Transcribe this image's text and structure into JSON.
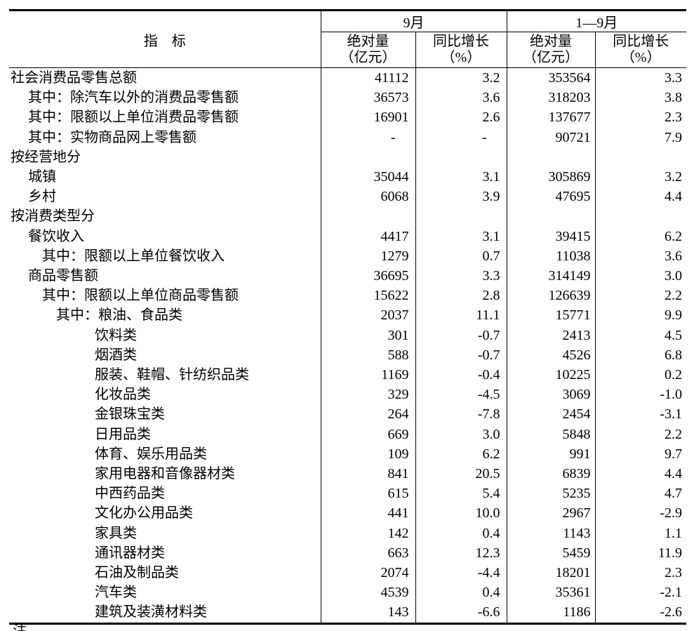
{
  "note": "注",
  "table": {
    "indicator_header": "指　标",
    "col_groups": [
      {
        "label": "9月"
      },
      {
        "label": "1—9月"
      }
    ],
    "sub_headers": {
      "abs_line1": "绝对量",
      "abs_line2": "（亿元）",
      "growth_line1": "同比增长",
      "growth_line2": "（%）"
    }
  },
  "rows": [
    {
      "label": "社会消费品零售总额",
      "indent": 0,
      "values": [
        "41112",
        "3.2",
        "353564",
        "3.3"
      ]
    },
    {
      "label": "其中：除汽车以外的消费品零售额",
      "indent": 1,
      "values": [
        "36573",
        "3.6",
        "318203",
        "3.8"
      ]
    },
    {
      "label": "其中：限额以上单位消费品零售额",
      "indent": 1,
      "values": [
        "16901",
        "2.6",
        "137677",
        "2.3"
      ]
    },
    {
      "label": "其中：实物商品网上零售额",
      "indent": 1,
      "values": [
        "-",
        "-",
        "90721",
        "7.9"
      ]
    },
    {
      "label": "按经营地分",
      "indent": 0,
      "values": [
        "",
        "",
        "",
        ""
      ]
    },
    {
      "label": "城镇",
      "indent": 1,
      "values": [
        "35044",
        "3.1",
        "305869",
        "3.2"
      ]
    },
    {
      "label": "乡村",
      "indent": 1,
      "values": [
        "6068",
        "3.9",
        "47695",
        "4.4"
      ]
    },
    {
      "label": "按消费类型分",
      "indent": 0,
      "values": [
        "",
        "",
        "",
        ""
      ]
    },
    {
      "label": "餐饮收入",
      "indent": 1,
      "values": [
        "4417",
        "3.1",
        "39415",
        "6.2"
      ]
    },
    {
      "label": "其中：限额以上单位餐饮收入",
      "indent": 2,
      "values": [
        "1279",
        "0.7",
        "11038",
        "3.6"
      ]
    },
    {
      "label": "商品零售额",
      "indent": 1,
      "values": [
        "36695",
        "3.3",
        "314149",
        "3.0"
      ]
    },
    {
      "label": "其中：限额以上单位商品零售额",
      "indent": 2,
      "values": [
        "15622",
        "2.8",
        "126639",
        "2.2"
      ]
    },
    {
      "label": "其中：粮油、食品类",
      "indent": 3,
      "values": [
        "2037",
        "11.1",
        "15771",
        "9.9"
      ]
    },
    {
      "label": "饮料类",
      "indent": 4,
      "values": [
        "301",
        "-0.7",
        "2413",
        "4.5"
      ]
    },
    {
      "label": "烟酒类",
      "indent": 4,
      "values": [
        "588",
        "-0.7",
        "4526",
        "6.8"
      ]
    },
    {
      "label": "服装、鞋帽、针纺织品类",
      "indent": 4,
      "values": [
        "1169",
        "-0.4",
        "10225",
        "0.2"
      ]
    },
    {
      "label": "化妆品类",
      "indent": 4,
      "values": [
        "329",
        "-4.5",
        "3069",
        "-1.0"
      ]
    },
    {
      "label": "金银珠宝类",
      "indent": 4,
      "values": [
        "264",
        "-7.8",
        "2454",
        "-3.1"
      ]
    },
    {
      "label": "日用品类",
      "indent": 4,
      "values": [
        "669",
        "3.0",
        "5848",
        "2.2"
      ]
    },
    {
      "label": "体育、娱乐用品类",
      "indent": 4,
      "values": [
        "109",
        "6.2",
        "991",
        "9.7"
      ]
    },
    {
      "label": "家用电器和音像器材类",
      "indent": 4,
      "values": [
        "841",
        "20.5",
        "6839",
        "4.4"
      ]
    },
    {
      "label": "中西药品类",
      "indent": 4,
      "values": [
        "615",
        "5.4",
        "5235",
        "4.7"
      ]
    },
    {
      "label": "文化办公用品类",
      "indent": 4,
      "values": [
        "441",
        "10.0",
        "2967",
        "-2.9"
      ]
    },
    {
      "label": "家具类",
      "indent": 4,
      "values": [
        "142",
        "0.4",
        "1143",
        "1.1"
      ]
    },
    {
      "label": "通讯器材类",
      "indent": 4,
      "values": [
        "663",
        "12.3",
        "5459",
        "11.9"
      ]
    },
    {
      "label": "石油及制品类",
      "indent": 4,
      "values": [
        "2074",
        "-4.4",
        "18201",
        "2.3"
      ]
    },
    {
      "label": "汽车类",
      "indent": 4,
      "values": [
        "4539",
        "0.4",
        "35361",
        "-2.1"
      ]
    },
    {
      "label": "建筑及装潢材料类",
      "indent": 4,
      "values": [
        "143",
        "-6.6",
        "1186",
        "-2.6"
      ]
    }
  ]
}
